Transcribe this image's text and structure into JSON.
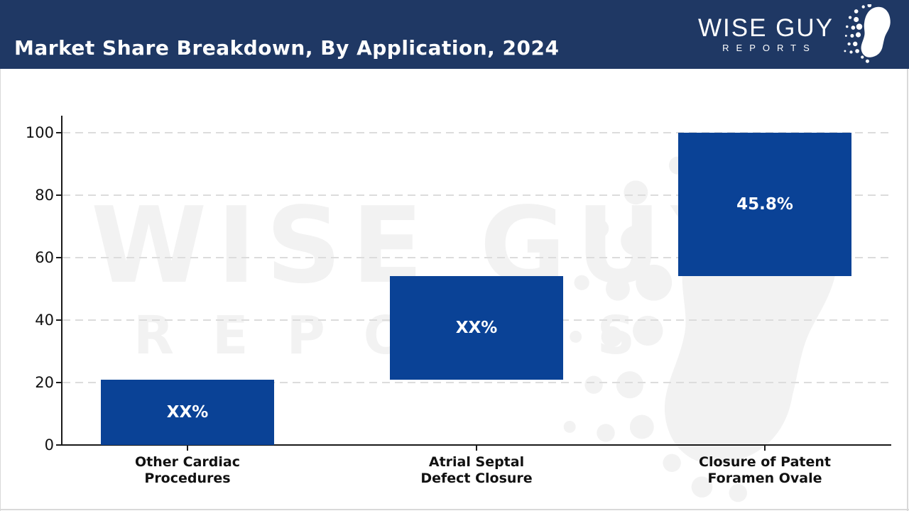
{
  "header": {
    "title": "Market Share Breakdown, By Application, 2024",
    "logo": {
      "wordmark": "WISE GUY",
      "subtext": "REPORTS"
    }
  },
  "watermark": {
    "line1": "WISE GUY",
    "line2": "REPORTS"
  },
  "chart_data": {
    "type": "bar",
    "subtype": "stacked-waterfall",
    "title": "Market Share Breakdown, By Application, 2024",
    "categories": [
      "Other Cardiac Procedures",
      "Atrial Septal Defect Closure",
      "Closure of Patent Foramen Ovale"
    ],
    "category_label_lines": [
      [
        "Other Cardiac",
        "Procedures"
      ],
      [
        "Atrial Septal",
        "Defect Closure"
      ],
      [
        "Closure of Patent",
        "Foramen Ovale"
      ]
    ],
    "segments": [
      {
        "category": "Other Cardiac Procedures",
        "start": 0,
        "end": 21,
        "label": "XX%"
      },
      {
        "category": "Atrial Septal Defect Closure",
        "start": 21,
        "end": 54.2,
        "label": "XX%"
      },
      {
        "category": "Closure of Patent Foramen Ovale",
        "start": 54.2,
        "end": 100,
        "label": "45.8%"
      }
    ],
    "xlabel": "",
    "ylabel": "",
    "yticks": [
      0,
      20,
      40,
      60,
      80,
      100
    ],
    "ylim": [
      0,
      105
    ],
    "grid": "horizontal-dashed",
    "legend": "none",
    "bar_color": "#0a4296",
    "bar_label_color": "#ffffff"
  },
  "colors": {
    "header_bg": "#1f3864",
    "axis": "#1a1a1a",
    "grid": "#dcdcdc",
    "watermark": "#f2f2f2",
    "page_border": "#d9d9d9"
  }
}
